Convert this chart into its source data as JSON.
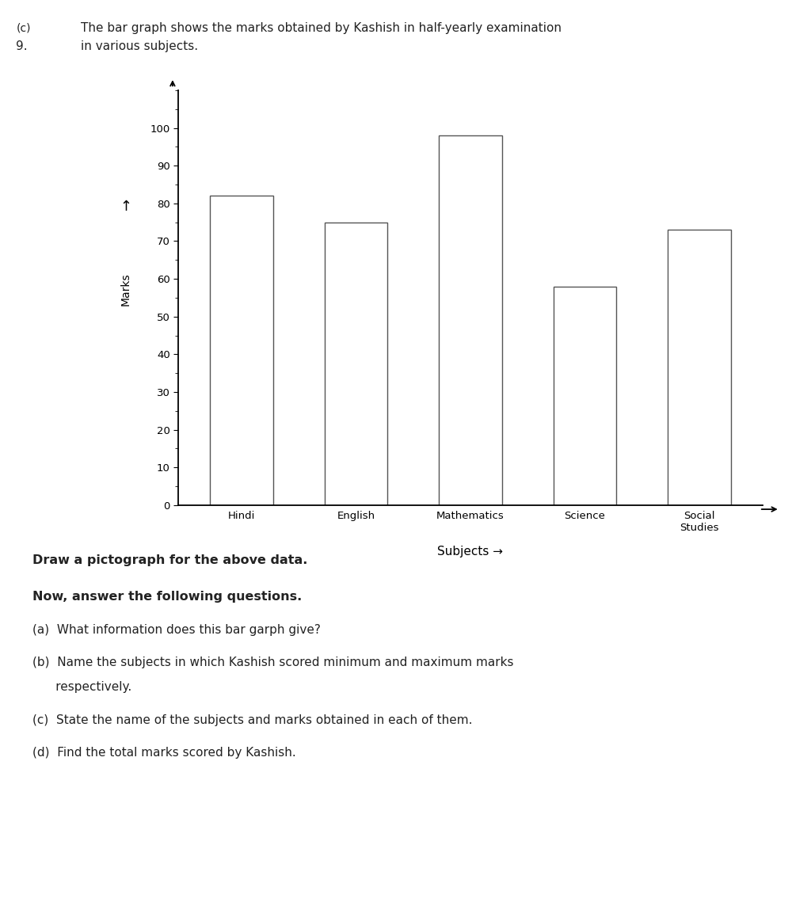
{
  "num_label": "9.",
  "title_line1": "The bar graph shows the marks obtained by Kashish in half-yearly examination",
  "title_line2": "in various subjects.",
  "categories": [
    "Hindi",
    "English",
    "Mathematics",
    "Science",
    "Social\nStudies"
  ],
  "values": [
    82,
    75,
    98,
    58,
    73
  ],
  "bar_color": "#ffffff",
  "bar_edge_color": "#555555",
  "ylabel_arrow": "↑",
  "ylabel_text": "Marks",
  "xlabel": "Subjects →",
  "ylim_max": 110,
  "yticks": [
    0,
    10,
    20,
    30,
    40,
    50,
    60,
    70,
    80,
    90,
    100
  ],
  "background_color": "#ffffff",
  "text_color": "#222222",
  "q0_bold": "Draw a pictograph for the above data.",
  "q_now": "Now, answer the following questions.",
  "qa": "(a)  What information does this bar garph give?",
  "qb1": "(b)  Name the subjects in which Kashish scored minimum and maximum marks",
  "qb2": "      respectively.",
  "qc": "(c)  State the name of the subjects and marks obtained in each of them.",
  "qd": "(d)  Find the total marks scored by Kashish."
}
